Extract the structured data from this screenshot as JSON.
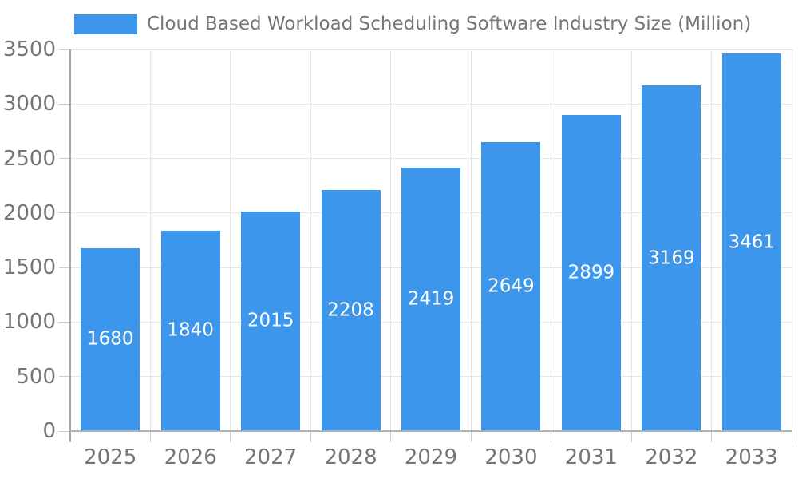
{
  "chart_data": {
    "type": "bar",
    "title": "Cloud Based Workload Scheduling Software Industry Size (Million)",
    "categories": [
      "2025",
      "2026",
      "2027",
      "2028",
      "2029",
      "2030",
      "2031",
      "2032",
      "2033"
    ],
    "values": [
      1680,
      1840,
      2015,
      2208,
      2419,
      2649,
      2899,
      3169,
      3461
    ],
    "xlabel": "",
    "ylabel": "",
    "ylim": [
      0,
      3500
    ],
    "yticks": [
      0,
      500,
      1000,
      1500,
      2000,
      2500,
      3000,
      3500
    ],
    "grid": true,
    "legend_position": "top-left",
    "value_labels": "inside-center",
    "colors": {
      "bar": "#3c96eb",
      "value_text": "#ffffff",
      "axis_text": "#757575",
      "gridline": "#e6e6e6",
      "axis_line": "#a6a6a6",
      "tick": "#cccccc",
      "background": "#ffffff"
    }
  }
}
